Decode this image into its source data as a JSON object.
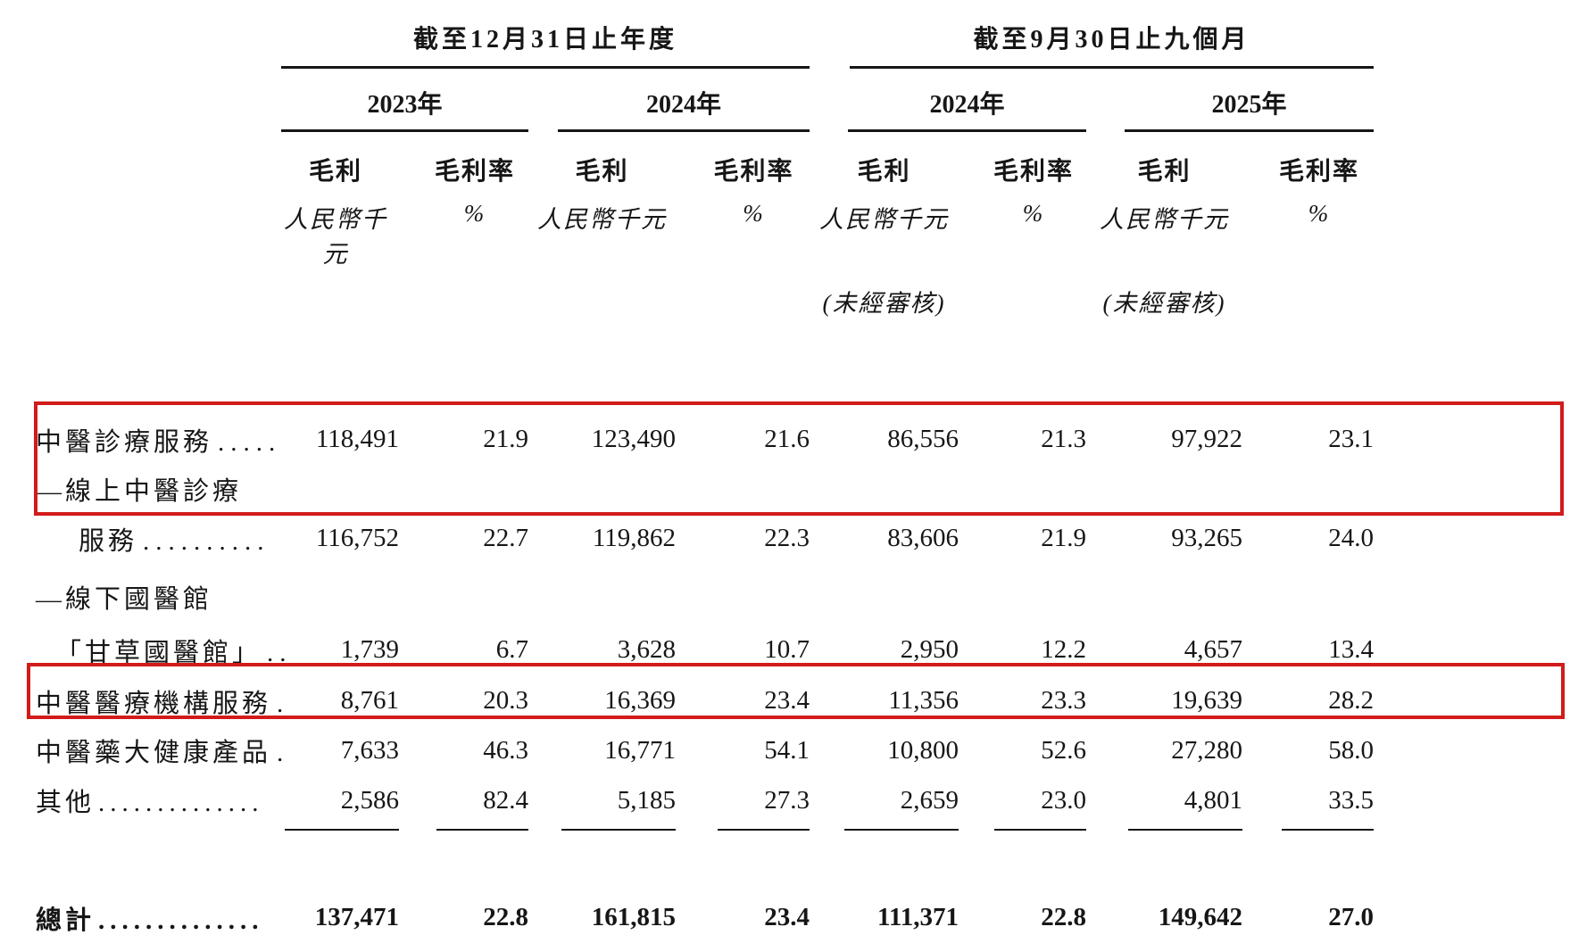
{
  "table": {
    "period_groups": [
      {
        "title": "截至12月31日止年度",
        "years": [
          "2023年",
          "2024年"
        ]
      },
      {
        "title": "截至9月30日止九個月",
        "years": [
          "2024年",
          "2025年"
        ]
      }
    ],
    "col_headers": {
      "gross_profit": "毛利",
      "gross_margin": "毛利率",
      "unit_rmb": "人民幣千元",
      "unit_pct": "%",
      "unaudited": "(未經審核)"
    },
    "rows": [
      {
        "line1": "中醫診療服務",
        "line1_dots": ".....",
        "values": [
          "118,491",
          "21.9",
          "123,490",
          "21.6",
          "86,556",
          "21.3",
          "97,922",
          "23.1"
        ]
      },
      {
        "line1": "—線上中醫診療",
        "line2": "服務",
        "line2_dots": "..........",
        "highlighted": true,
        "values": [
          "116,752",
          "22.7",
          "119,862",
          "22.3",
          "83,606",
          "21.9",
          "93,265",
          "24.0"
        ]
      },
      {
        "line1": "—線下國醫館",
        "line2": "「甘草國醫館」",
        "line2_dots": "..",
        "highlighted": false,
        "values": [
          "1,739",
          "6.7",
          "3,628",
          "10.7",
          "2,950",
          "12.2",
          "4,657",
          "13.4"
        ]
      },
      {
        "line1": "中醫醫療機構服務",
        "line1_dots": ".",
        "values": [
          "8,761",
          "20.3",
          "16,369",
          "23.4",
          "11,356",
          "23.3",
          "19,639",
          "28.2"
        ]
      },
      {
        "line1": "中醫藥大健康產品",
        "line1_dots": ".",
        "highlighted": true,
        "values": [
          "7,633",
          "46.3",
          "16,771",
          "54.1",
          "10,800",
          "52.6",
          "27,280",
          "58.0"
        ]
      },
      {
        "line1": "其他",
        "line1_dots": "..............",
        "values": [
          "2,586",
          "82.4",
          "5,185",
          "27.3",
          "2,659",
          "23.0",
          "4,801",
          "33.5"
        ]
      }
    ],
    "total": {
      "label": "總計",
      "dots": "..............",
      "values": [
        "137,471",
        "22.8",
        "161,815",
        "23.4",
        "111,371",
        "22.8",
        "149,642",
        "27.0"
      ]
    }
  },
  "highlight_color": "#d21b1b"
}
